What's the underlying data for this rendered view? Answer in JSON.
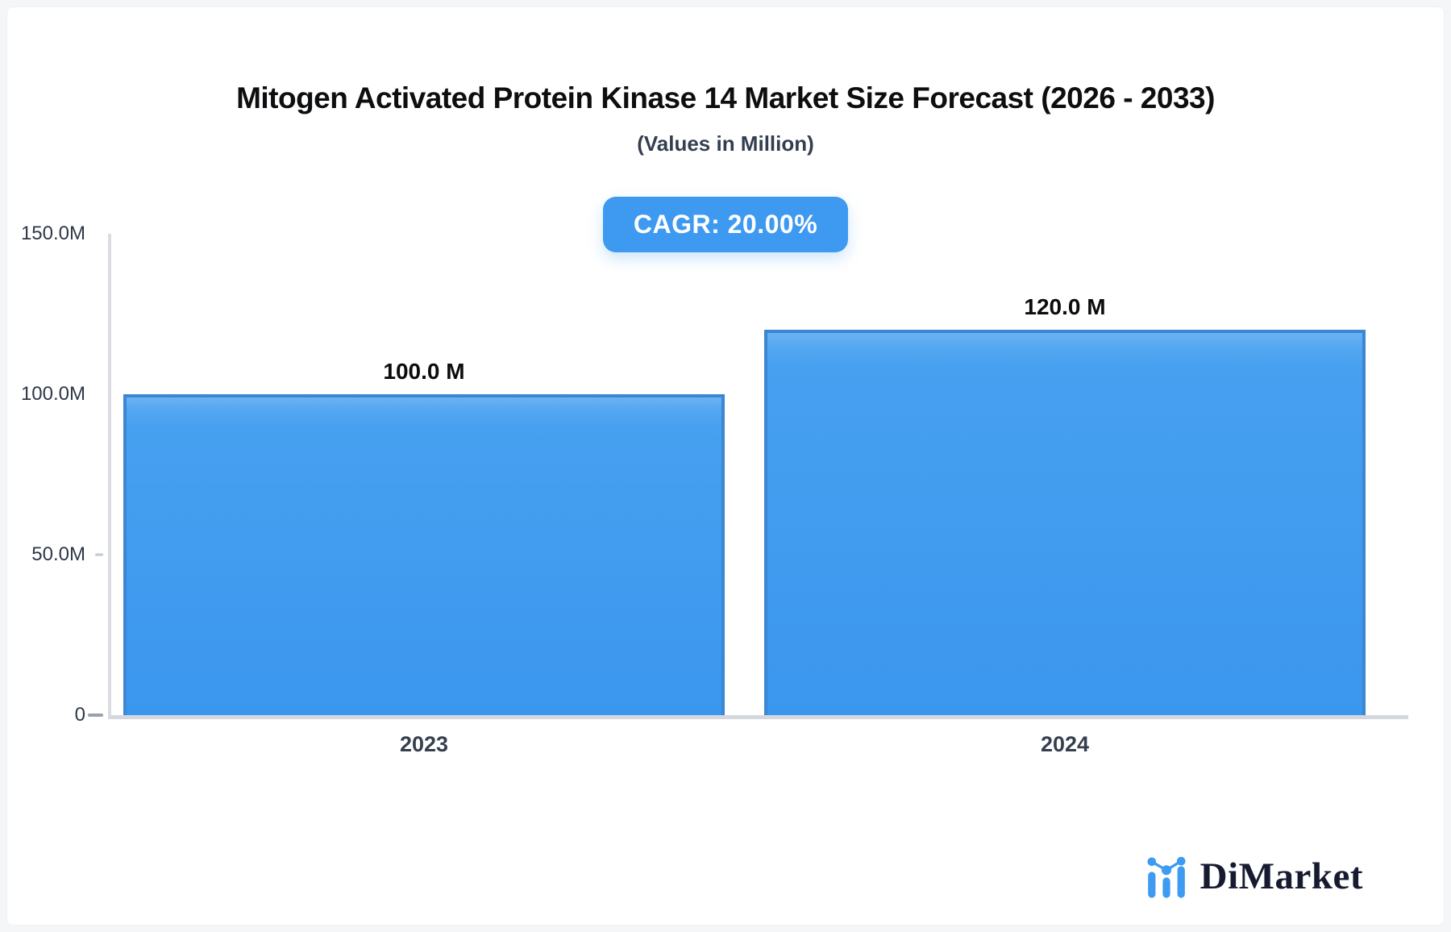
{
  "header": {
    "title": "Mitogen Activated Protein Kinase 14 Market Size Forecast (2026 - 2033)",
    "subtitle": "(Values in Million)"
  },
  "cagr": {
    "label": "CAGR: 20.00%"
  },
  "chart_data": {
    "type": "bar",
    "title": "Mitogen Activated Protein Kinase 14 Market Size Forecast (2026 - 2033)",
    "subtitle": "(Values in Million)",
    "unit": "Million",
    "cagr_percent": "20.00%",
    "categories": [
      "2023",
      "2024"
    ],
    "values": [
      100.0,
      120.0
    ],
    "bar_labels": [
      "100.0 M",
      "120.0 M"
    ],
    "ylim": [
      0,
      150
    ],
    "yticks": [
      {
        "label": "150.0M",
        "value": 150,
        "tick": false
      },
      {
        "label": "100.0M",
        "value": 100,
        "tick": false
      },
      {
        "label": "50.0M",
        "value": 50,
        "tick": true
      },
      {
        "label": "0",
        "value": 0,
        "tick": true
      }
    ],
    "grid": false,
    "legend": false,
    "bar_color": "#3e9af1"
  },
  "brand": {
    "name": "DiMarket",
    "icon": "bar-line-chart-icon"
  },
  "colors": {
    "accent_blue": "#3e9af1",
    "bar_border": "#3c86d2",
    "axis_line": "#d7dade",
    "title_text": "#0d0e10",
    "slate_text": "#333e4f"
  }
}
